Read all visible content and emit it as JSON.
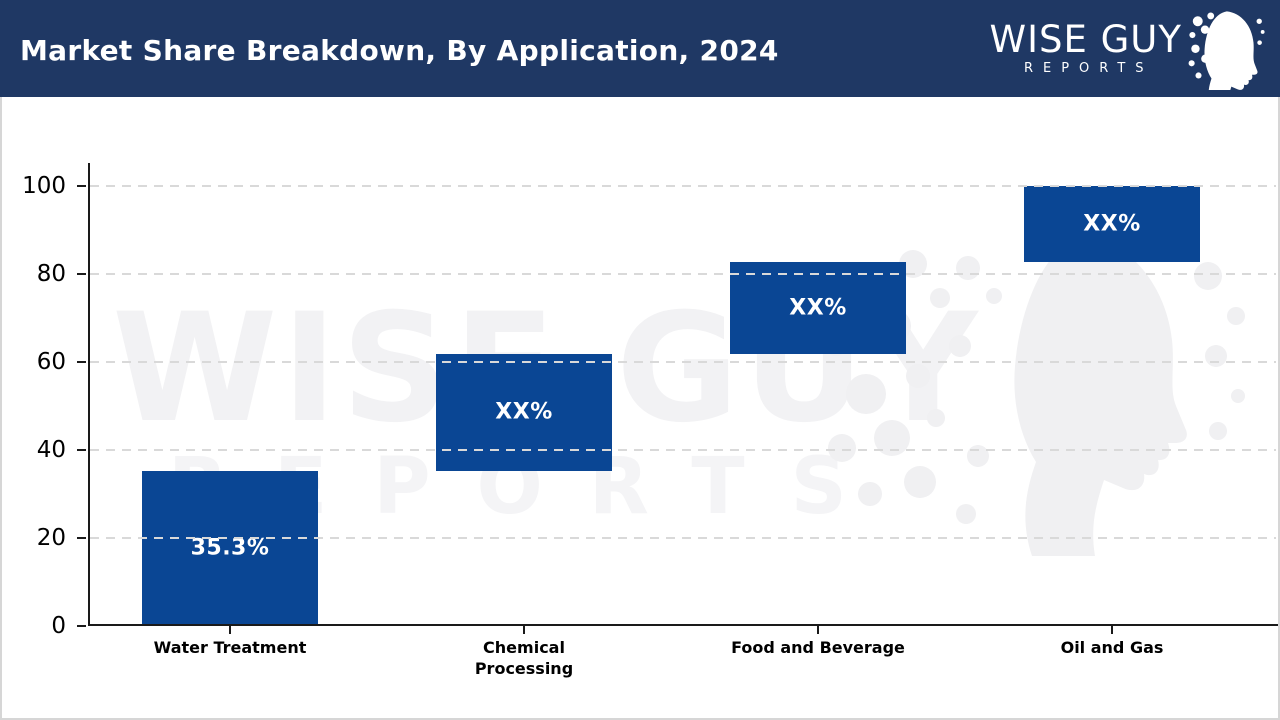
{
  "header": {
    "title": "Market Share Breakdown, By Application, 2024",
    "logo": {
      "line1": "WISE GUY",
      "line2": "REPORTS"
    }
  },
  "watermark": {
    "line1": "WISE GUY",
    "line2": "REPORTS"
  },
  "colors": {
    "header_bg": "#1F3864",
    "bar": "#0A4694",
    "bar_label": "#ffffff",
    "gridline": "#d9d9d9",
    "axis": "#1a1a1a",
    "watermark": "#f2f2f4"
  },
  "chart_data": {
    "type": "bar",
    "subtype": "waterfall",
    "title": "Market Share Breakdown, By Application, 2024",
    "categories": [
      "Water Treatment",
      "Chemical Processing",
      "Food and Beverage",
      "Oil and Gas"
    ],
    "tick_labels": [
      "Water Treatment",
      "Chemical\nProcessing",
      "Food and Beverage",
      "Oil and Gas"
    ],
    "segments": [
      {
        "category": "Water Treatment",
        "start": 0,
        "end": 35.3,
        "label": "35.3%"
      },
      {
        "category": "Chemical Processing",
        "start": 35.3,
        "end": 61.8,
        "label": "XX%"
      },
      {
        "category": "Food and Beverage",
        "start": 61.8,
        "end": 82.7,
        "label": "XX%"
      },
      {
        "category": "Oil and Gas",
        "start": 82.7,
        "end": 100,
        "label": "XX%"
      }
    ],
    "y_ticks": [
      0,
      20,
      40,
      60,
      80,
      100
    ],
    "ylim": [
      0,
      105
    ],
    "xlabel": "",
    "ylabel": "",
    "grid": "dashed-horizontal-over-bars",
    "legend": "none",
    "bar_color": "#0A4694",
    "label_color": "#ffffff"
  }
}
